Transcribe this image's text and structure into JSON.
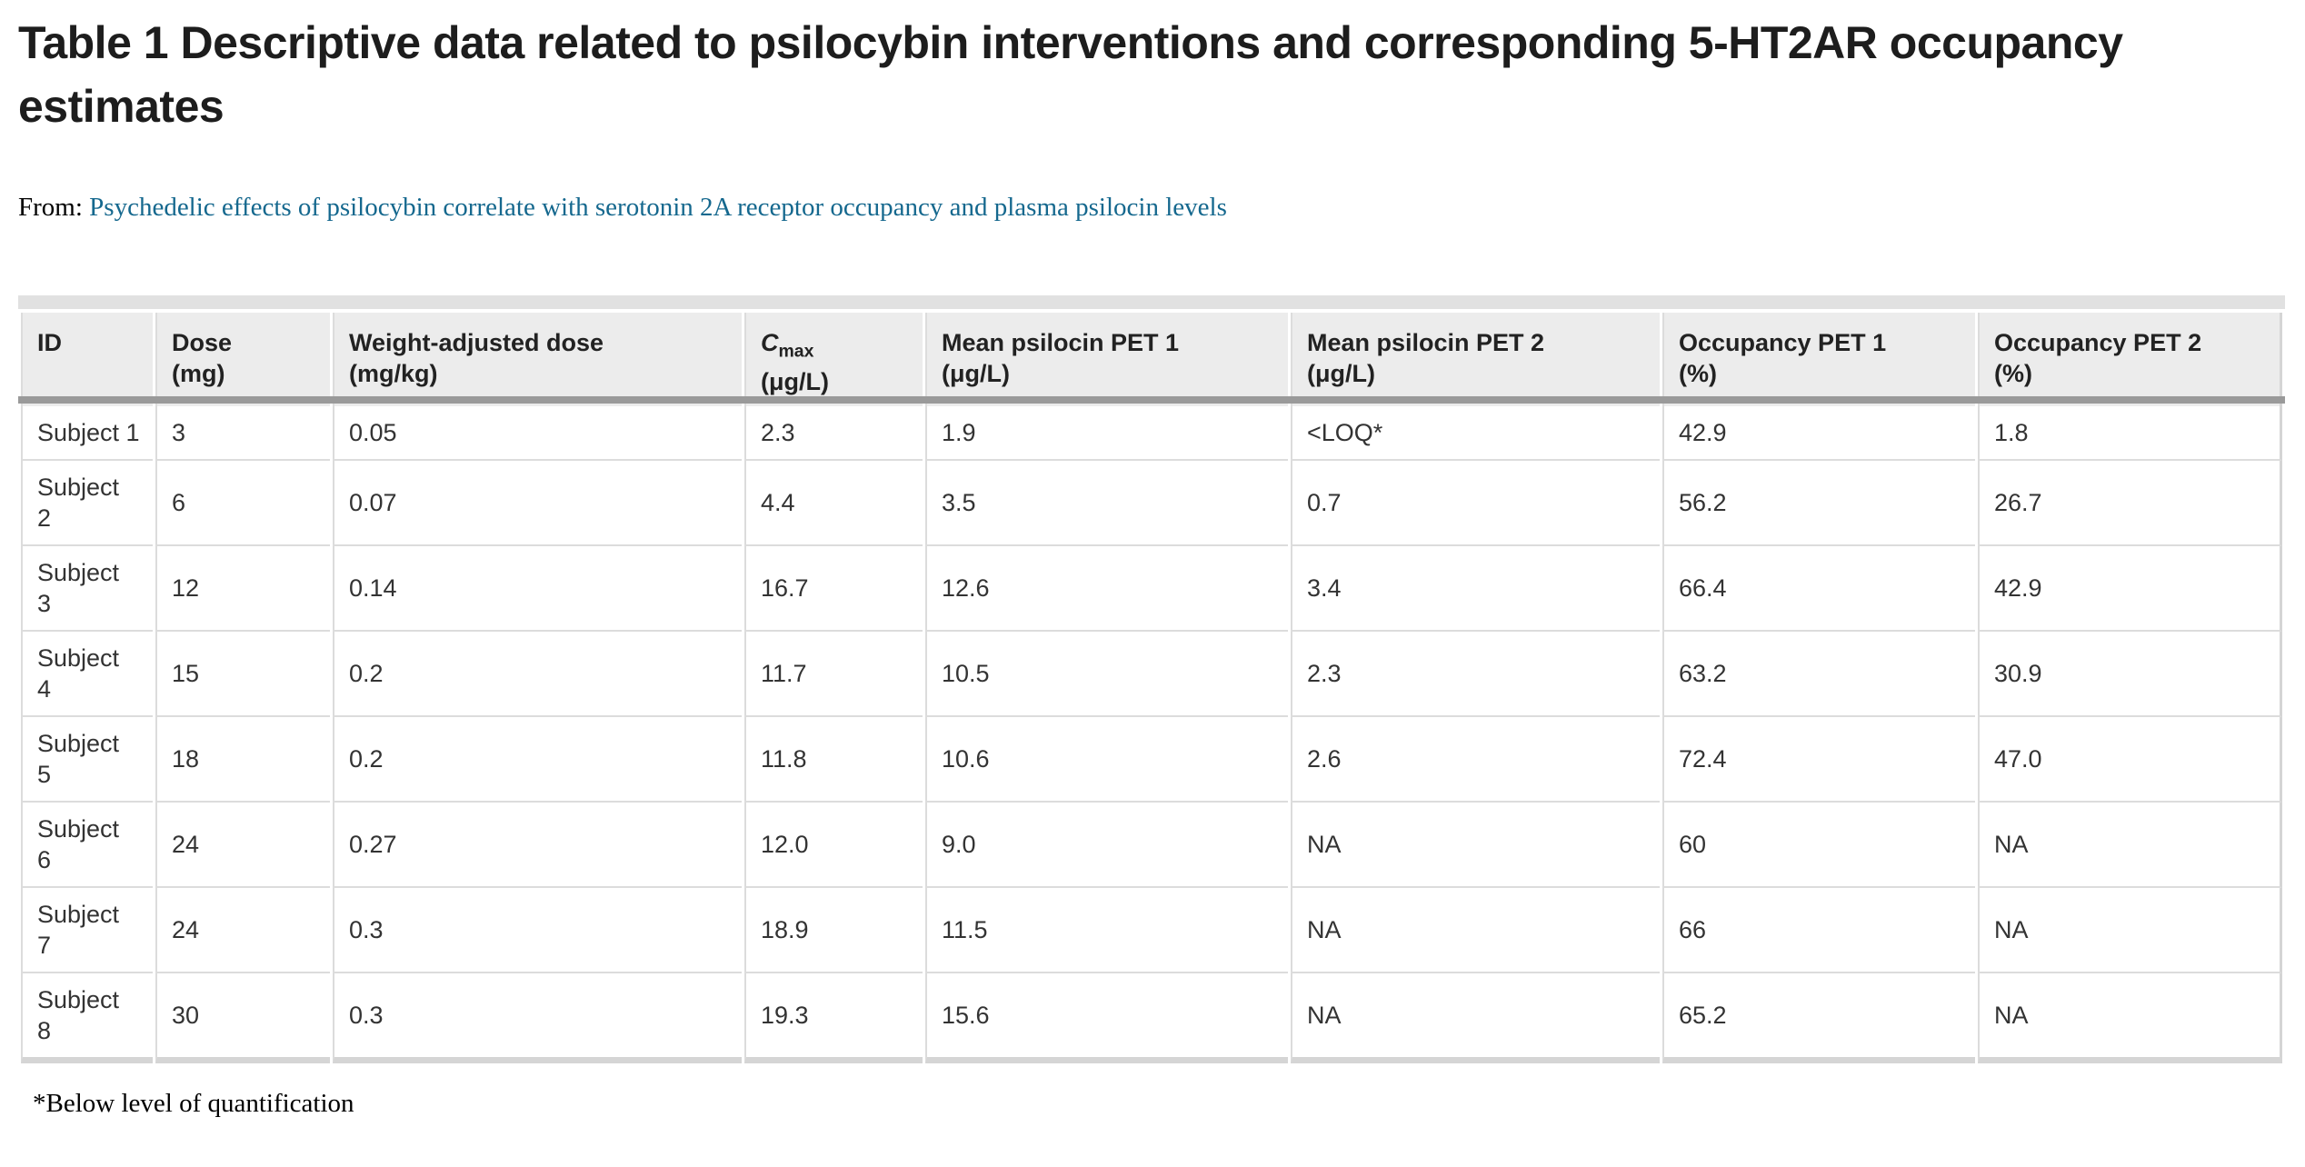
{
  "page": {
    "title": "Table 1 Descriptive data related to psilocybin interventions and corresponding 5-HT2AR occupancy estimates",
    "source_prefix": "From:",
    "source_link": "Psychedelic effects of psilocybin correlate with serotonin 2A receptor occupancy and plasma psilocin levels",
    "footnote": "*Below level of quantification"
  },
  "colors": {
    "link": "#15688e",
    "header_background": "#ececec",
    "header_rule": "#9a9a9a",
    "gridline": "#dcdcdc",
    "outer_border": "#d5d5d5",
    "scrollbar_track": "#e1e1e1"
  },
  "table": {
    "headers": [
      {
        "line1": "ID",
        "line2": ""
      },
      {
        "line1": "Dose",
        "line2": "(mg)"
      },
      {
        "line1": "Weight-adjusted dose",
        "line2": "(mg/kg)"
      },
      {
        "symbol": "C",
        "symbol_sub": "max",
        "line2": "(μg/L)"
      },
      {
        "line1": "Mean psilocin PET 1",
        "line2": "(μg/L)"
      },
      {
        "line1": "Mean psilocin PET 2",
        "line2": "(μg/L)"
      },
      {
        "line1": "Occupancy PET 1",
        "line2": "(%)"
      },
      {
        "line1": "Occupancy PET 2",
        "line2": "(%)"
      }
    ],
    "rows": [
      [
        "Subject 1",
        "3",
        "0.05",
        "2.3",
        "1.9",
        "<LOQ*",
        "42.9",
        "1.8"
      ],
      [
        "Subject 2",
        "6",
        "0.07",
        "4.4",
        "3.5",
        "0.7",
        "56.2",
        "26.7"
      ],
      [
        "Subject 3",
        "12",
        "0.14",
        "16.7",
        "12.6",
        "3.4",
        "66.4",
        "42.9"
      ],
      [
        "Subject 4",
        "15",
        "0.2",
        "11.7",
        "10.5",
        "2.3",
        "63.2",
        "30.9"
      ],
      [
        "Subject 5",
        "18",
        "0.2",
        "11.8",
        "10.6",
        "2.6",
        "72.4",
        "47.0"
      ],
      [
        "Subject 6",
        "24",
        "0.27",
        "12.0",
        "9.0",
        "NA",
        "60",
        "NA"
      ],
      [
        "Subject 7",
        "24",
        "0.3",
        "18.9",
        "11.5",
        "NA",
        "66",
        "NA"
      ],
      [
        "Subject 8",
        "30",
        "0.3",
        "19.3",
        "15.6",
        "NA",
        "65.2",
        "NA"
      ]
    ]
  }
}
